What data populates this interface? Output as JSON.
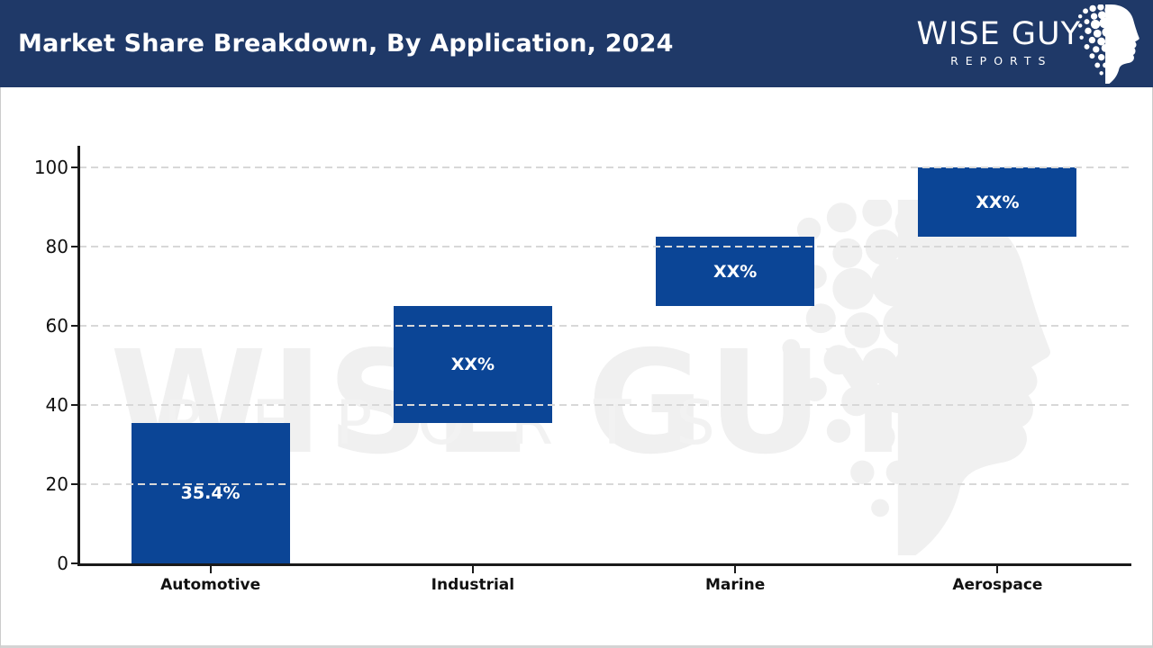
{
  "header": {
    "title": "Market Share Breakdown, By Application, 2024",
    "background_color": "#1f3968",
    "logo": {
      "line1": "WISE GUY",
      "line2": "REPORTS"
    }
  },
  "watermark": {
    "line1": "WISE GUY",
    "line2": "REPORTS"
  },
  "chart_data": {
    "type": "bar",
    "subtype": "floating-segment waterfall of market share",
    "title": "Market Share Breakdown, By Application, 2024",
    "categories": [
      "Automotive",
      "Industrial",
      "Marine",
      "Aerospace"
    ],
    "segments": [
      {
        "category": "Automotive",
        "start": 0,
        "end": 35.4,
        "label": "35.4%"
      },
      {
        "category": "Industrial",
        "start": 35.4,
        "end": 65,
        "label": "XX%"
      },
      {
        "category": "Marine",
        "start": 65,
        "end": 82.5,
        "label": "XX%"
      },
      {
        "category": "Aerospace",
        "start": 82.5,
        "end": 100,
        "label": "XX%"
      }
    ],
    "xlabel": "",
    "ylabel": "",
    "ylim": [
      0,
      100
    ],
    "yticks": [
      0,
      20,
      40,
      60,
      80,
      100
    ],
    "grid": "dashed horizontal, drawn above bars",
    "legend": "none",
    "bar_color": "#0b4596",
    "bar_label_color": "#ffffff",
    "axis_color": "#1a1a1a",
    "gridline_color": "#d8d8d8"
  }
}
